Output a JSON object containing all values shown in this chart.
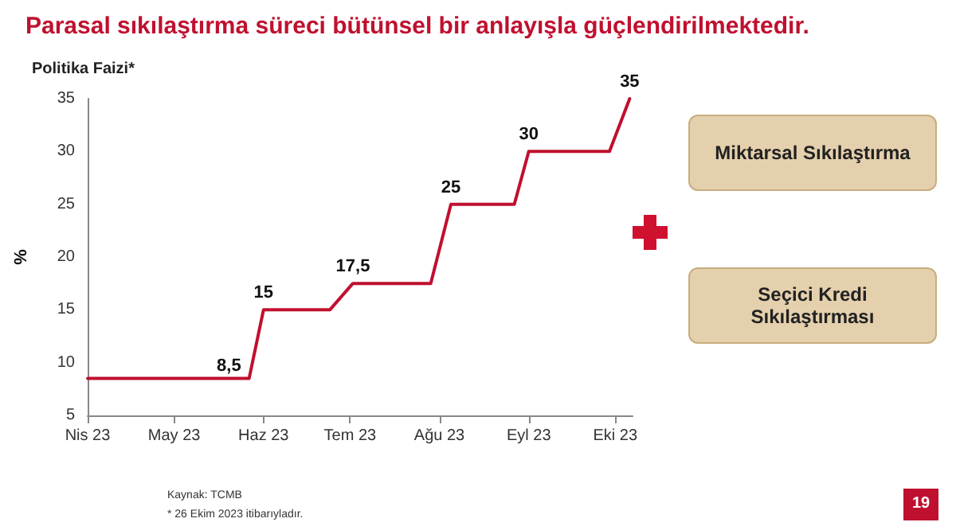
{
  "chart_data": {
    "type": "line",
    "title": "Parasal sıkılaştırma süreci bütünsel bir anlayışla güçlendirilmektedir.",
    "ylabel": "%",
    "x": [
      "2023-04-01",
      "2023-05-27",
      "2023-06-01",
      "2023-06-24",
      "2023-07-02",
      "2023-07-29",
      "2023-08-05",
      "2023-08-27",
      "2023-09-01",
      "2023-09-29",
      "2023-10-06"
    ],
    "series": [
      {
        "color": "#c0102f",
        "values": [
          8.5,
          8.5,
          15,
          15,
          17.5,
          17.5,
          25,
          25,
          30,
          30,
          35
        ],
        "value_labels": [
          null,
          "8,5",
          "15",
          null,
          "17,5",
          null,
          "25",
          null,
          "30",
          null,
          "35"
        ]
      }
    ],
    "xlim": [
      "2023-04-01",
      "2023-10-07"
    ],
    "xticks": [
      {
        "value": "2023-04-01",
        "label": "Nis 23"
      },
      {
        "value": "2023-05-01",
        "label": "May 23"
      },
      {
        "value": "2023-06-01",
        "label": "Haz 23"
      },
      {
        "value": "2023-07-01",
        "label": "Tem 23"
      },
      {
        "value": "2023-08-01",
        "label": "Ağu 23"
      },
      {
        "value": "2023-09-01",
        "label": "Eyl 23"
      },
      {
        "value": "2023-10-01",
        "label": "Eki 23"
      }
    ],
    "ylim": [
      5,
      35
    ],
    "yticks": [
      5,
      10,
      15,
      20,
      25,
      30,
      35
    ],
    "grid": false,
    "marker": "none",
    "line_style": "solid",
    "annotations": [
      "Politika Faizi*",
      "Miktarsal Sıkılaştırma",
      "Seçici Kredi Sıkılaştırması",
      "Kaynak: TCMB",
      "* 26 Ekim 2023 itibarıyladır.",
      "19"
    ]
  }
}
